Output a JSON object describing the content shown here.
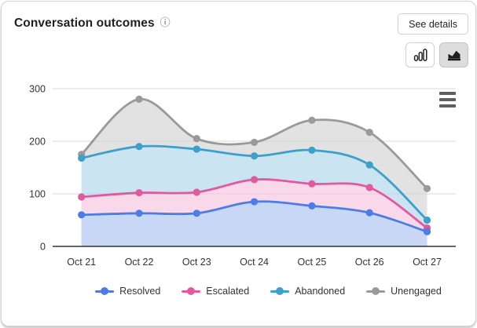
{
  "header": {
    "title": "Conversation outcomes",
    "see_details_label": "See details"
  },
  "toolbar": {
    "chart_type_options": [
      "bar",
      "area"
    ],
    "selected_chart_type": "area"
  },
  "chart_data": {
    "type": "area",
    "title": "Conversation outcomes",
    "categories": [
      "Oct 21",
      "Oct 22",
      "Oct 23",
      "Oct 24",
      "Oct 25",
      "Oct 26",
      "Oct 27"
    ],
    "series": [
      {
        "name": "Resolved",
        "color": "#4d7de2",
        "fill": "#c9d7f7",
        "values": [
          60,
          63,
          63,
          85,
          77,
          64,
          28
        ]
      },
      {
        "name": "Escalated",
        "color": "#e1599e",
        "fill": "#f9d8ea",
        "values": [
          94,
          102,
          103,
          127,
          119,
          112,
          35
        ]
      },
      {
        "name": "Abandoned",
        "color": "#3d9fca",
        "fill": "#cbe4f2",
        "values": [
          168,
          190,
          185,
          172,
          183,
          155,
          50
        ]
      },
      {
        "name": "Unengaged",
        "color": "#9a9a9a",
        "fill": "#e2e2e2",
        "values": [
          175,
          280,
          205,
          198,
          240,
          217,
          110
        ]
      }
    ],
    "ylim": [
      0,
      300
    ],
    "yticks": [
      0,
      100,
      200,
      300
    ],
    "grid": true,
    "legend_position": "bottom",
    "axis_color": "#333333",
    "grid_color": "#e6e6e6",
    "label_color": "#333333"
  }
}
